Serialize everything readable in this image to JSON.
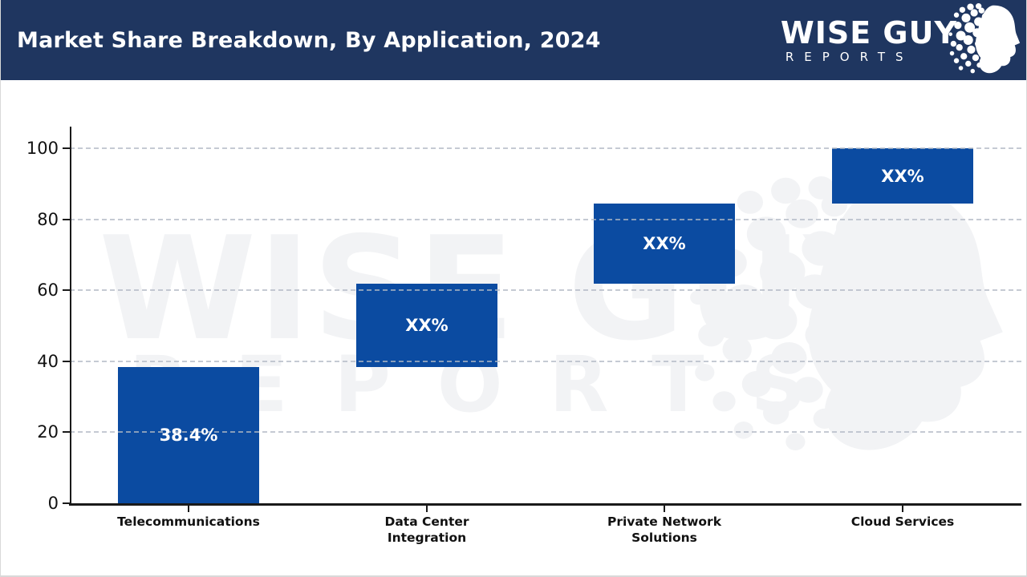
{
  "header": {
    "title": "Market Share Breakdown, By Application, 2024",
    "bg_color": "#1f3660",
    "logo": {
      "line1": "WISE GUY",
      "line2": "REPORTS"
    }
  },
  "watermark": {
    "line1": "WISE GUY",
    "line2": "REPORTS"
  },
  "chart_data": {
    "type": "bar",
    "subtype": "waterfall",
    "title": "Market Share Breakdown, By Application, 2024",
    "categories": [
      "Telecommunications",
      "Data Center\nIntegration",
      "Private Network\nSolutions",
      "Cloud Services"
    ],
    "series": [
      {
        "name": "Market Share",
        "segments": [
          {
            "category": "Telecommunications",
            "start": 0,
            "end": 38.4,
            "label": "38.4%"
          },
          {
            "category": "Data Center Integration",
            "start": 38.4,
            "end": 61.8,
            "label": "XX%"
          },
          {
            "category": "Private Network Solutions",
            "start": 61.8,
            "end": 84.4,
            "label": "XX%"
          },
          {
            "category": "Cloud Services",
            "start": 84.4,
            "end": 100,
            "label": "XX%"
          }
        ]
      }
    ],
    "xlabel": "",
    "ylabel": "",
    "ylim": [
      0,
      100
    ],
    "y_ticks": [
      0,
      20,
      40,
      60,
      80,
      100
    ],
    "grid": "horizontal-dashed",
    "legend": "none",
    "colors": {
      "bar": "#0b4ba1",
      "value_label": "#ffffff",
      "grid_line": "#d9d9d9",
      "axis": "#1a1a1a",
      "header_bg": "#1f3660",
      "watermark": "#f2f3f5"
    }
  }
}
